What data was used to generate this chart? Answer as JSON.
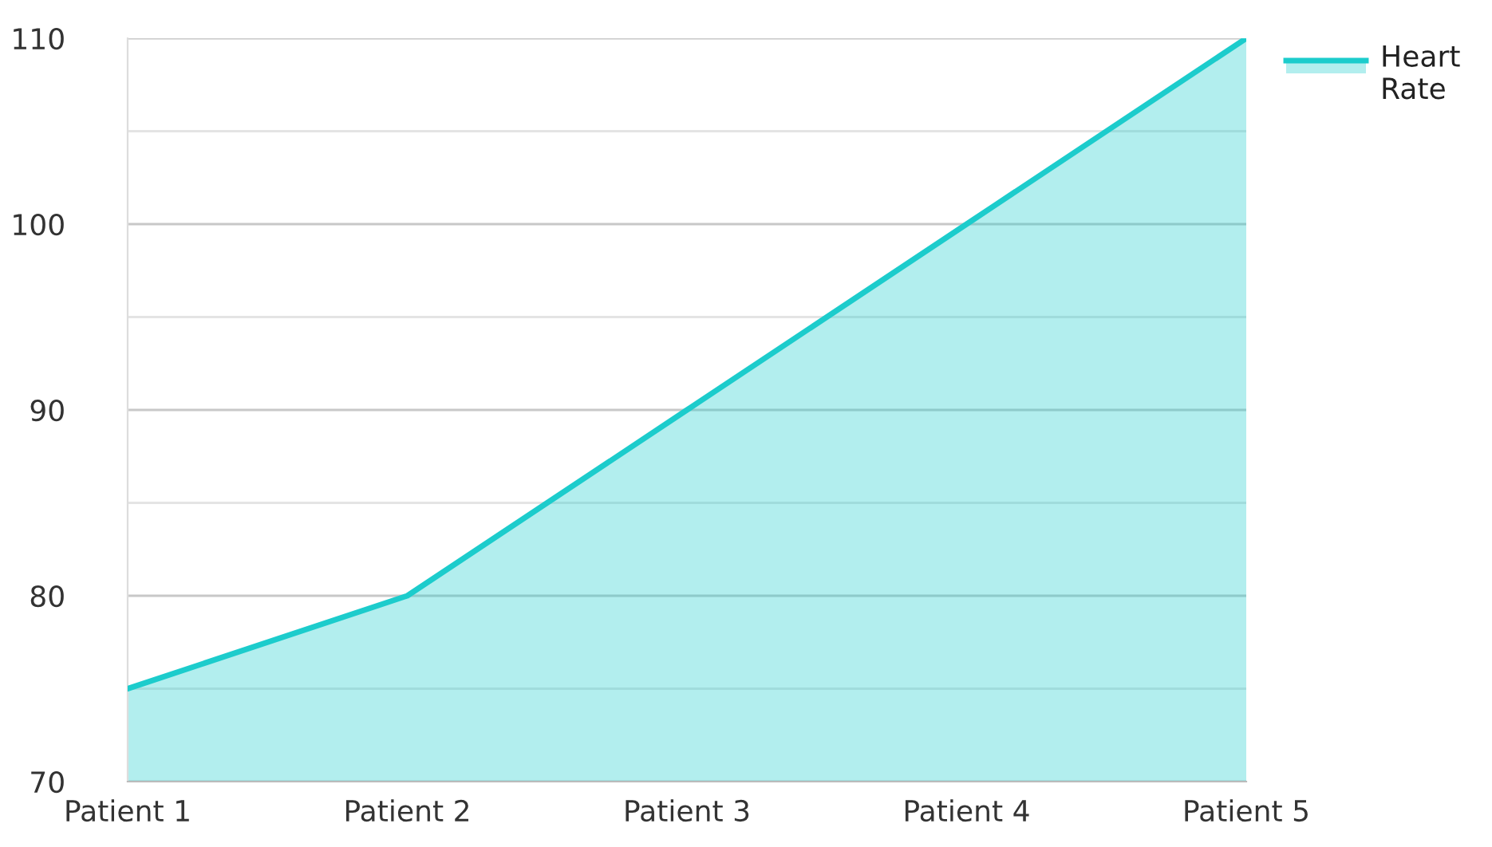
{
  "chart_data": {
    "type": "area",
    "categories": [
      "Patient 1",
      "Patient 2",
      "Patient 3",
      "Patient 4",
      "Patient 5"
    ],
    "series": [
      {
        "name": "Heart Rate",
        "color": "#1ccccc",
        "values": [
          75,
          80,
          90,
          100,
          110
        ]
      }
    ],
    "ylim": [
      70,
      110
    ],
    "yticks": [
      70,
      {
        "value": 75,
        "label": null
      },
      80,
      {
        "value": 85,
        "label": null
      },
      90,
      {
        "value": 95,
        "label": null
      },
      100,
      {
        "value": 105,
        "label": null
      },
      110
    ],
    "grid": "y",
    "legend": "top right",
    "marker": "none",
    "line_style": "solid"
  }
}
